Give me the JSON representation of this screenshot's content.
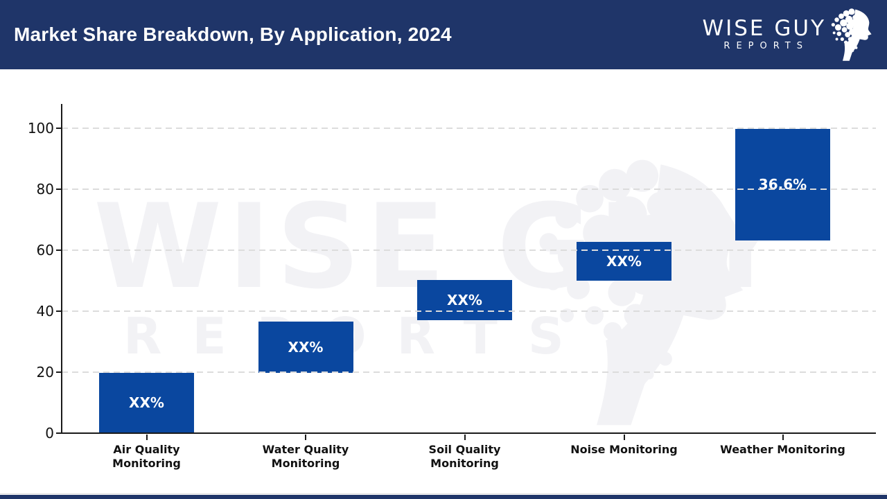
{
  "header": {
    "title": "Market Share Breakdown, By Application, 2024"
  },
  "logo": {
    "line1": "WISE GUY",
    "line2": "REPORTS"
  },
  "watermark": {
    "line1": "WISE GUY",
    "line2": "REPORTS"
  },
  "colors": {
    "header_bg": "#1f3569",
    "bar": "#0a479f",
    "bar_label": "#ffffff",
    "grid": "#dcdcdc",
    "axis": "#1a1a1a",
    "tick_label": "#111111",
    "watermark": "#f2f2f5"
  },
  "chart_data": {
    "type": "bar",
    "variant": "floating-segment-waterfall",
    "title": "Market Share Breakdown, By Application, 2024",
    "categories": [
      "Air Quality\nMonitoring",
      "Water Quality\nMonitoring",
      "Soil Quality\nMonitoring",
      "Noise Monitoring",
      "Weather Monitoring"
    ],
    "bars": [
      {
        "category": "Air Quality Monitoring",
        "start": 0,
        "end": 19.8,
        "label": "XX%"
      },
      {
        "category": "Water Quality Monitoring",
        "start": 19.8,
        "end": 36.6,
        "label": "XX%"
      },
      {
        "category": "Soil Quality Monitoring",
        "start": 37.0,
        "end": 50.2,
        "label": "XX%"
      },
      {
        "category": "Noise Monitoring",
        "start": 50.0,
        "end": 62.8,
        "label": "XX%"
      },
      {
        "category": "Weather Monitoring",
        "start": 63.2,
        "end": 99.8,
        "label": "36.6%"
      }
    ],
    "yticks": [
      0,
      20,
      40,
      60,
      80,
      100
    ],
    "ylim": [
      0,
      108
    ],
    "grid": "horizontal-dashed",
    "bar_color": "#0a479f",
    "legend": null
  }
}
